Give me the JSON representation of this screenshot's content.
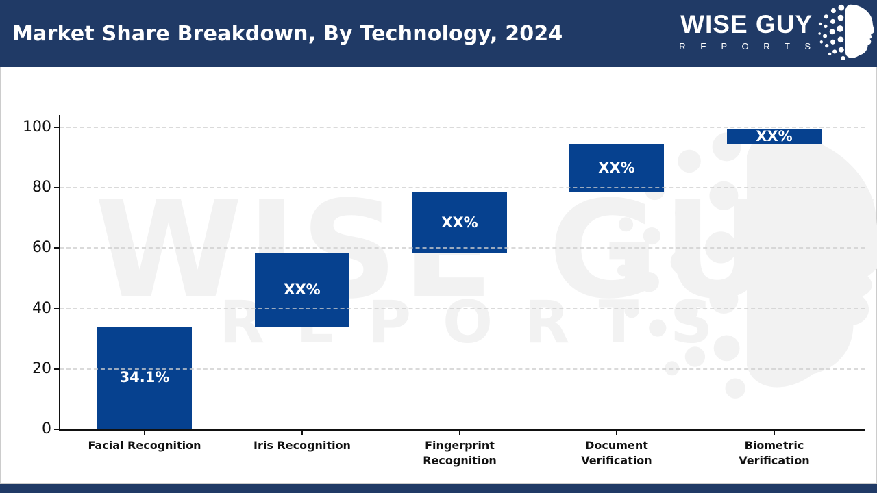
{
  "header": {
    "title": "Market Share Breakdown, By Technology, 2024",
    "brand_name": "WISE GUY",
    "brand_sub": "R E P O R T S",
    "bg_color": "#203a66",
    "text_color": "#ffffff"
  },
  "watermark": {
    "line1": "WISE GUY",
    "line2": "REPORTS",
    "color": "#f2f2f2"
  },
  "chart_data": {
    "type": "bar",
    "subtype": "waterfall",
    "title": "Market Share Breakdown, By Technology, 2024",
    "xlabel": "",
    "ylabel": "",
    "categories": [
      "Facial Recognition",
      "Iris Recognition",
      "Fingerprint\nRecognition",
      "Document\nVerification",
      "Biometric\nVerification"
    ],
    "segments": [
      {
        "category": "Facial Recognition",
        "label": "34.1%",
        "start": 0,
        "end": 34.1
      },
      {
        "category": "Iris Recognition",
        "label": "XX%",
        "start": 34.1,
        "end": 58.4
      },
      {
        "category": "Fingerprint Recognition",
        "label": "XX%",
        "start": 58.4,
        "end": 78.5
      },
      {
        "category": "Document Verification",
        "label": "XX%",
        "start": 78.5,
        "end": 94.3
      },
      {
        "category": "Biometric Verification",
        "label": "XX%",
        "start": 94.3,
        "end": 99.5
      }
    ],
    "yticks": [
      0,
      20,
      40,
      60,
      80,
      100
    ],
    "ylim": [
      0,
      104
    ],
    "bar_color": "#06418f",
    "bar_label_color": "#ffffff",
    "grid": "horizontal dashed",
    "gridline_color": "#d7d7d7",
    "legend": "none"
  },
  "footer": {
    "bg_color": "#203a66"
  }
}
